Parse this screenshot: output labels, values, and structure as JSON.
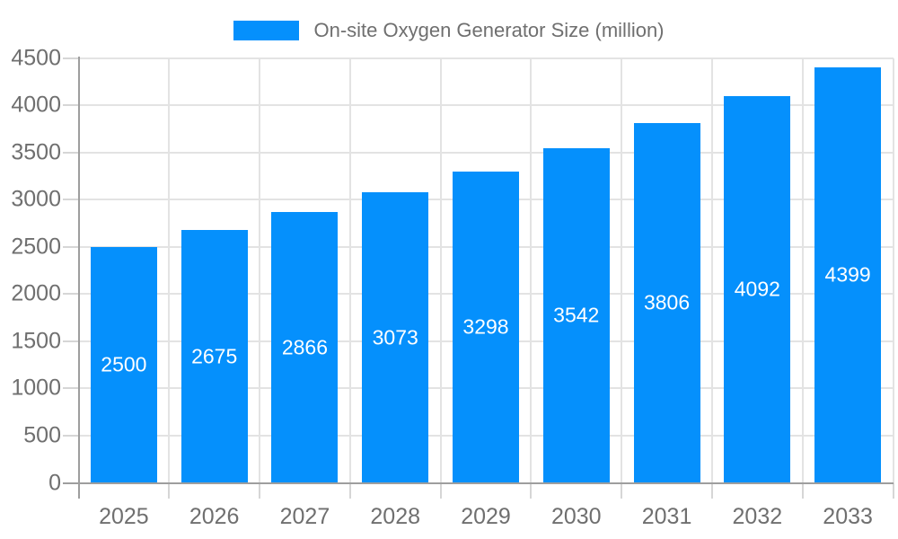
{
  "chart_data": {
    "type": "bar",
    "title": "On-site Oxygen Generator Size (million)",
    "categories": [
      "2025",
      "2026",
      "2027",
      "2028",
      "2029",
      "2030",
      "2031",
      "2032",
      "2033"
    ],
    "values": [
      2500,
      2675,
      2866,
      3073,
      3298,
      3542,
      3806,
      4092,
      4399
    ],
    "xlabel": "",
    "ylabel": "",
    "ylim": [
      0,
      4500
    ],
    "ytick_step": 500,
    "yticks": [
      0,
      500,
      1000,
      1500,
      2000,
      2500,
      3000,
      3500,
      4000,
      4500
    ],
    "grid": true,
    "legend_position": "top",
    "colors": {
      "bar": "#0590fc",
      "grid": "#e3e3e3",
      "axis": "#9e9e9e",
      "tick": "#d6d6d6",
      "text": "#6f6f6f",
      "bar_label": "#ffffff",
      "background": "#ffffff"
    }
  }
}
